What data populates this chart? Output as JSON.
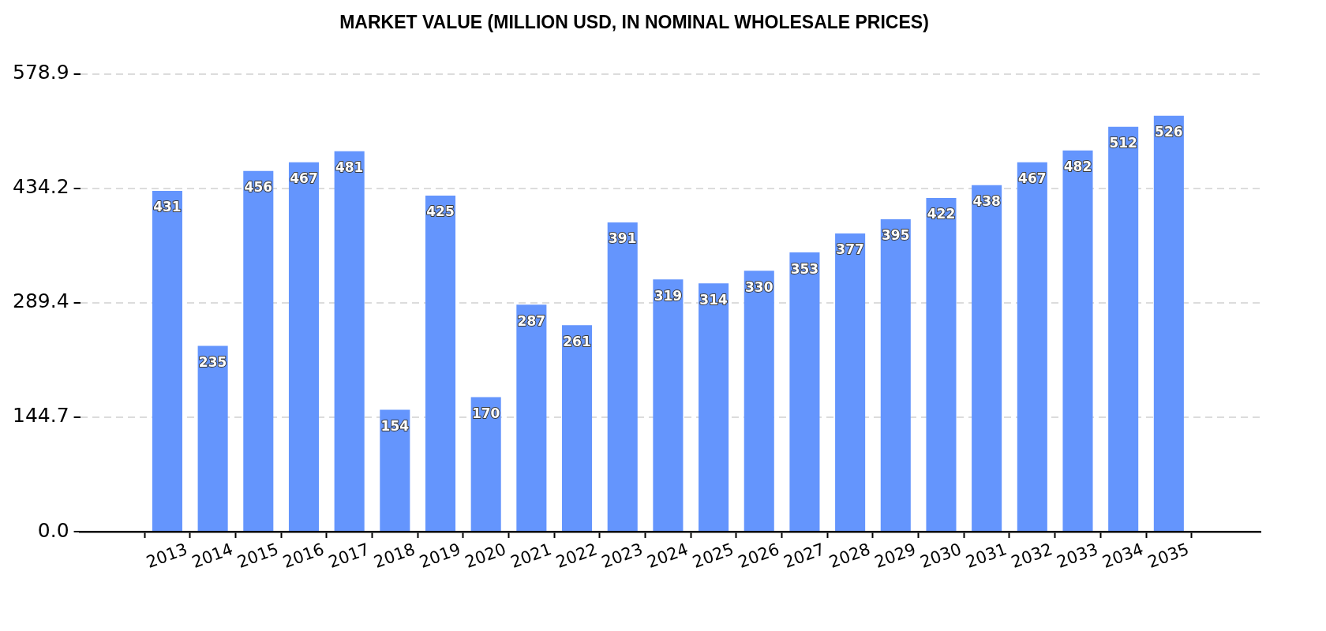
{
  "chart_data": {
    "type": "bar",
    "title": "MARKET VALUE (MILLION USD, IN NOMINAL WHOLESALE PRICES)",
    "categories": [
      "2013",
      "2014",
      "2015",
      "2016",
      "2017",
      "2018",
      "2019",
      "2020",
      "2021",
      "2022",
      "2023",
      "2024",
      "2025",
      "2026",
      "2027",
      "2028",
      "2029",
      "2030",
      "2031",
      "2032",
      "2033",
      "2034",
      "2035"
    ],
    "values": [
      431,
      235,
      456,
      467,
      481,
      154,
      425,
      170,
      287,
      261,
      391,
      319,
      314,
      330,
      353,
      377,
      395,
      422,
      438,
      467,
      482,
      512,
      526
    ],
    "color": "#6495fd",
    "ylim": [
      0,
      578.9
    ],
    "yticks": [
      {
        "value": 0,
        "label": "0.0"
      },
      144.7,
      289.4,
      434.2,
      578.9
    ],
    "grid": "y",
    "data_labels": true
  }
}
